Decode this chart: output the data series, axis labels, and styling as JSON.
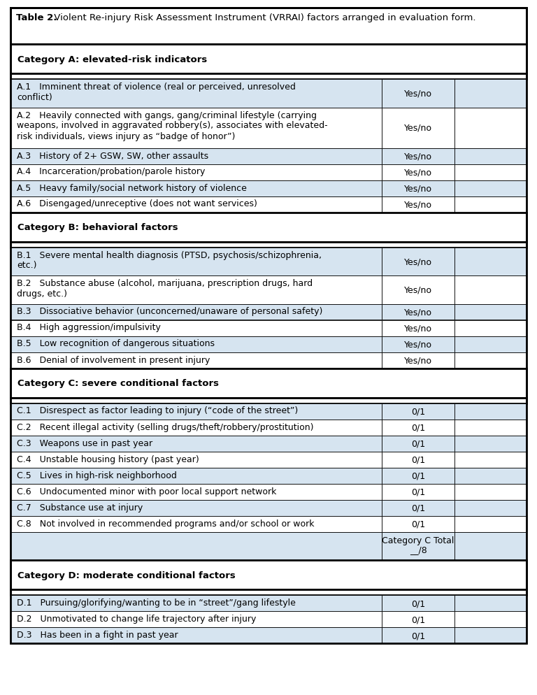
{
  "title_bold": "Table 2.",
  "title_rest": " Violent Re-injury Risk Assessment Instrument (VRRAI) factors arranged in evaluation form.",
  "bg_color": "#ffffff",
  "header_bg": "#ffffff",
  "category_bg": "#ffffff",
  "row_bg_light": "#d6e4f0",
  "row_bg_white": "#ffffff",
  "border_color": "#000000",
  "thick_border": 2.0,
  "thin_border": 0.6,
  "sections": [
    {
      "type": "title"
    },
    {
      "type": "category",
      "text": "Category A: elevated-risk indicators"
    },
    {
      "type": "blank"
    },
    {
      "type": "row",
      "col1": "A.1   Imminent threat of violence (real or perceived, unresolved\nconflict)",
      "col2": "Yes/no",
      "bg": "light",
      "lines": 2
    },
    {
      "type": "row",
      "col1": "A.2   Heavily connected with gangs, gang/criminal lifestyle (carrying\nweapons, involved in aggravated robbery(s), associates with elevated-\nrisk individuals, views injury as “badge of honor”)",
      "col2": "Yes/no",
      "bg": "white",
      "lines": 3
    },
    {
      "type": "row",
      "col1": "A.3   History of 2+ GSW, SW, other assaults",
      "col2": "Yes/no",
      "bg": "light",
      "lines": 1
    },
    {
      "type": "row",
      "col1": "A.4   Incarceration/probation/parole history",
      "col2": "Yes/no",
      "bg": "white",
      "lines": 1
    },
    {
      "type": "row",
      "col1": "A.5   Heavy family/social network history of violence",
      "col2": "Yes/no",
      "bg": "light",
      "lines": 1
    },
    {
      "type": "row",
      "col1": "A.6   Disengaged/unreceptive (does not want services)",
      "col2": "Yes/no",
      "bg": "white",
      "lines": 1
    },
    {
      "type": "category",
      "text": "Category B: behavioral factors"
    },
    {
      "type": "blank"
    },
    {
      "type": "row",
      "col1": "B.1   Severe mental health diagnosis (PTSD, psychosis/schizophrenia,\netc.)",
      "col2": "Yes/no",
      "bg": "light",
      "lines": 2
    },
    {
      "type": "row",
      "col1": "B.2   Substance abuse (alcohol, marijuana, prescription drugs, hard\ndrugs, etc.)",
      "col2": "Yes/no",
      "bg": "white",
      "lines": 2
    },
    {
      "type": "row",
      "col1": "B.3   Dissociative behavior (unconcerned/unaware of personal safety)",
      "col2": "Yes/no",
      "bg": "light",
      "lines": 1
    },
    {
      "type": "row",
      "col1": "B.4   High aggression/impulsivity",
      "col2": "Yes/no",
      "bg": "white",
      "lines": 1
    },
    {
      "type": "row",
      "col1": "B.5   Low recognition of dangerous situations",
      "col2": "Yes/no",
      "bg": "light",
      "lines": 1
    },
    {
      "type": "row",
      "col1": "B.6   Denial of involvement in present injury",
      "col2": "Yes/no",
      "bg": "white",
      "lines": 1
    },
    {
      "type": "category",
      "text": "Category C: severe conditional factors"
    },
    {
      "type": "blank"
    },
    {
      "type": "row",
      "col1": "C.1   Disrespect as factor leading to injury (“code of the street”)",
      "col2": "0/1",
      "bg": "light",
      "lines": 1
    },
    {
      "type": "row",
      "col1": "C.2   Recent illegal activity (selling drugs/theft/robbery/prostitution)",
      "col2": "0/1",
      "bg": "white",
      "lines": 1
    },
    {
      "type": "row",
      "col1": "C.3   Weapons use in past year",
      "col2": "0/1",
      "bg": "light",
      "lines": 1
    },
    {
      "type": "row",
      "col1": "C.4   Unstable housing history (past year)",
      "col2": "0/1",
      "bg": "white",
      "lines": 1
    },
    {
      "type": "row",
      "col1": "C.5   Lives in high-risk neighborhood",
      "col2": "0/1",
      "bg": "light",
      "lines": 1
    },
    {
      "type": "row",
      "col1": "C.6   Undocumented minor with poor local support network",
      "col2": "0/1",
      "bg": "white",
      "lines": 1
    },
    {
      "type": "row",
      "col1": "C.7   Substance use at injury",
      "col2": "0/1",
      "bg": "light",
      "lines": 1
    },
    {
      "type": "row",
      "col1": "C.8   Not involved in recommended programs and/or school or work",
      "col2": "0/1",
      "bg": "white",
      "lines": 1
    },
    {
      "type": "total_row"
    },
    {
      "type": "category",
      "text": "Category D: moderate conditional factors"
    },
    {
      "type": "blank"
    },
    {
      "type": "row",
      "col1": "D.1   Pursuing/glorifying/wanting to be in “street”/gang lifestyle",
      "col2": "0/1",
      "bg": "light",
      "lines": 1
    },
    {
      "type": "row",
      "col1": "D.2   Unmotivated to change life trajectory after injury",
      "col2": "0/1",
      "bg": "white",
      "lines": 1
    },
    {
      "type": "row",
      "col1": "D.3   Has been in a fight in past year",
      "col2": "0/1",
      "bg": "light",
      "lines": 1
    }
  ]
}
